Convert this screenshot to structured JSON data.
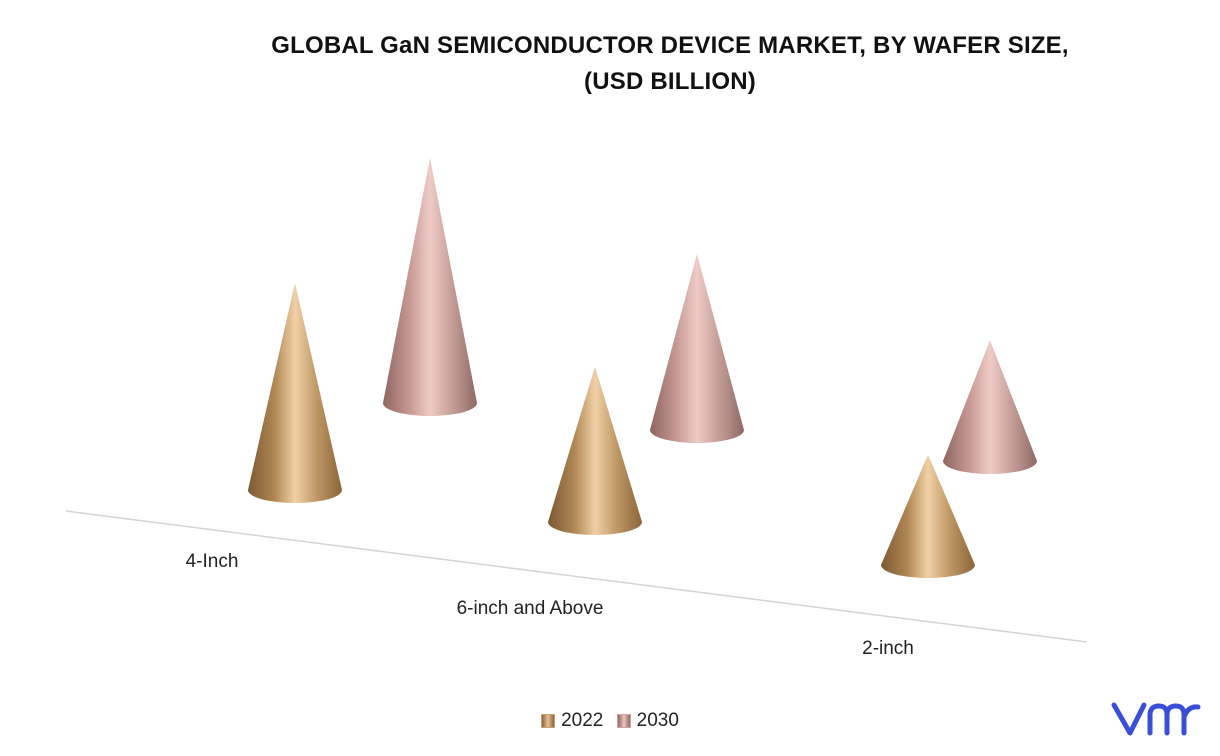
{
  "chart_data": {
    "type": "bar",
    "title_line1": "GLOBAL GaN SEMICONDUCTOR DEVICE MARKET, BY WAFER SIZE,",
    "title_line2": "(USD BILLION)",
    "categories": [
      "4-Inch",
      "6-inch and Above",
      "2-inch"
    ],
    "series": [
      {
        "name": "2022",
        "values": [
          6.0,
          4.5,
          3.2
        ],
        "color": "#c9a070"
      },
      {
        "name": "2030",
        "values": [
          7.1,
          5.1,
          3.5
        ],
        "color": "#d4a39b"
      }
    ],
    "xlabel": "",
    "ylabel": "",
    "ylim": [
      0,
      8
    ],
    "grid": false,
    "legend_position": "bottom"
  },
  "logo": {
    "text": "vmr",
    "color": "#3a4fd8"
  }
}
